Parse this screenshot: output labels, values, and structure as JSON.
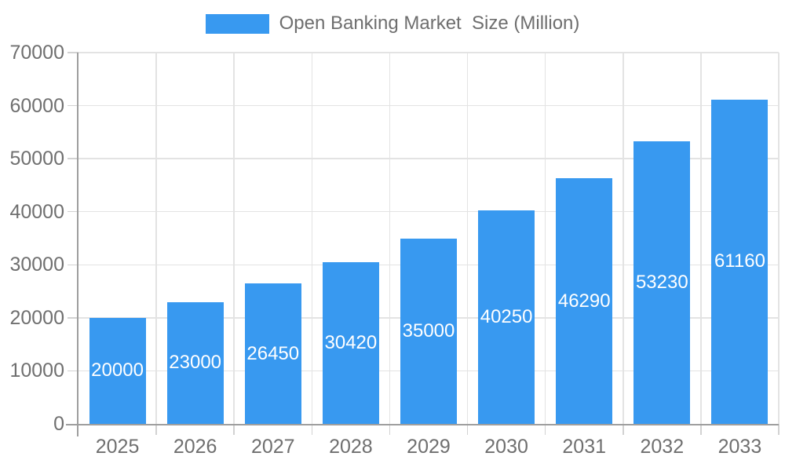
{
  "chart_data": {
    "type": "bar",
    "title": "Open Banking Market  Size (Million)",
    "categories": [
      "2025",
      "2026",
      "2027",
      "2028",
      "2029",
      "2030",
      "2031",
      "2032",
      "2033"
    ],
    "values": [
      20000,
      23000,
      26450,
      30420,
      35000,
      40250,
      46290,
      53230,
      61160
    ],
    "value_labels": [
      "20000",
      "23000",
      "26450",
      "30420",
      "35000",
      "40250",
      "46290",
      "53230",
      "61160"
    ],
    "xlabel": "",
    "ylabel": "",
    "ylim": [
      0,
      70000
    ],
    "ytick_values": [
      0,
      10000,
      20000,
      30000,
      40000,
      50000,
      60000,
      70000
    ],
    "ytick_labels": [
      "0",
      "10000",
      "20000",
      "30000",
      "40000",
      "50000",
      "60000",
      "70000"
    ],
    "grid": true,
    "legend_position": "top-center",
    "colors": {
      "bar": "#3899f0",
      "value_label": "#ffffff",
      "axis_label": "#6f6f6f",
      "legend_label": "#6e6e6e",
      "grid_line": "#e3e3e3",
      "tick_mark": "#d2d2d2",
      "axis_line": "#9e9e9e",
      "background": "#ffffff"
    }
  }
}
